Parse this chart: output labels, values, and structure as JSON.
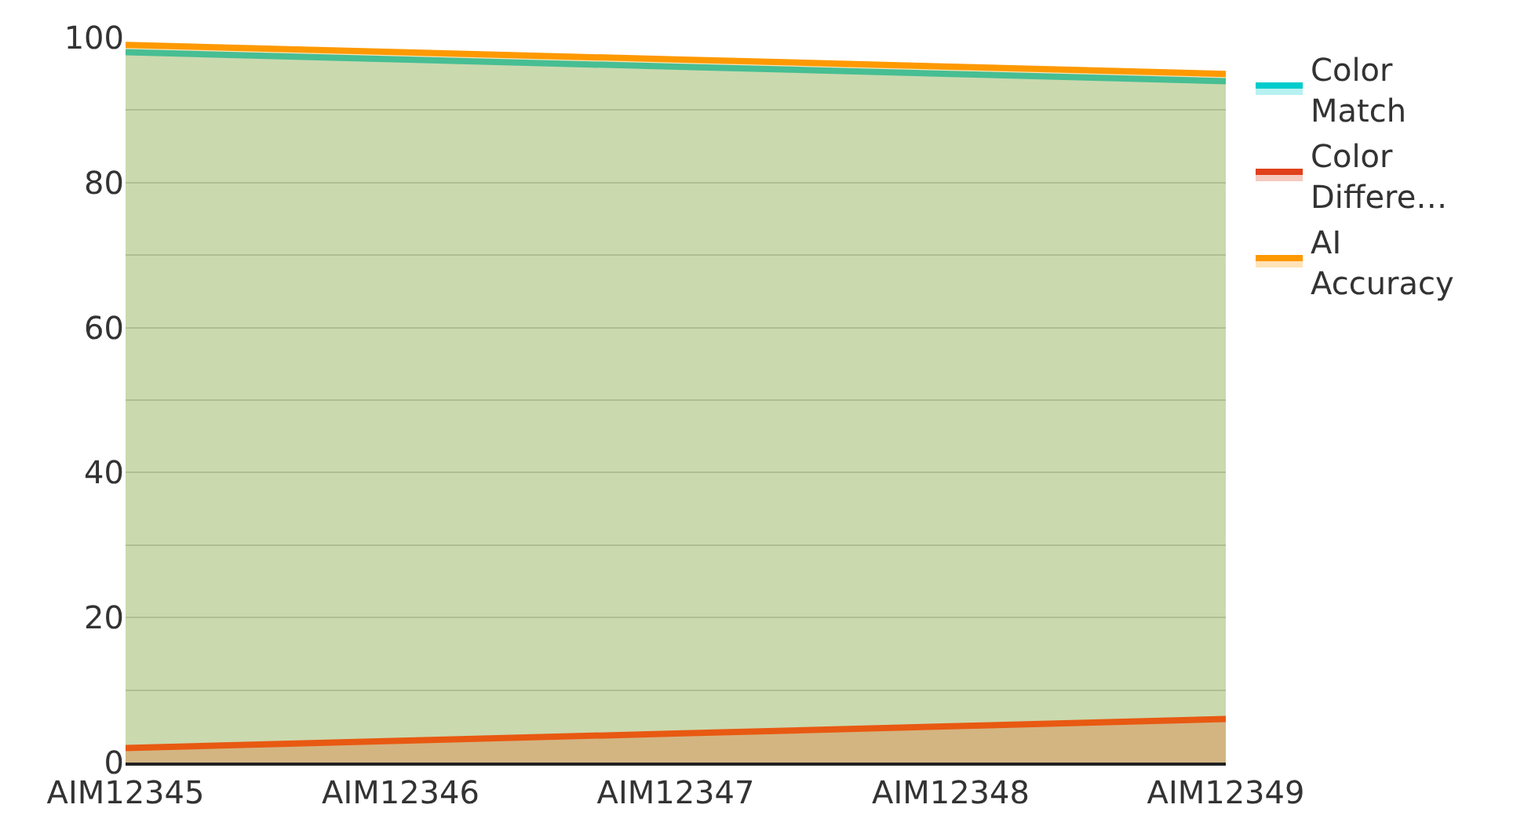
{
  "chart_data": {
    "type": "area",
    "categories": [
      "AIM12345",
      "AIM12346",
      "AIM12347",
      "AIM12348",
      "AIM12349"
    ],
    "series": [
      {
        "name": "Color Match",
        "color": "#00cccc",
        "values": [
          98,
          97,
          96,
          95,
          94
        ]
      },
      {
        "name": "Color Differe…",
        "color": "#e0401a",
        "values": [
          2,
          3,
          4,
          5,
          6
        ]
      },
      {
        "name": "AI Accuracy",
        "color": "#ff9900",
        "values": [
          99,
          98,
          97,
          96,
          95
        ]
      }
    ],
    "ylim": [
      0,
      100
    ],
    "yticks": [
      0,
      {
        "value": 10,
        "label": null
      },
      20,
      {
        "value": 30,
        "label": null
      },
      40,
      {
        "value": 50,
        "label": null
      },
      60,
      {
        "value": 70,
        "label": null
      },
      80,
      {
        "value": 90,
        "label": null
      },
      100
    ],
    "grid": "y",
    "legend": "top right"
  }
}
